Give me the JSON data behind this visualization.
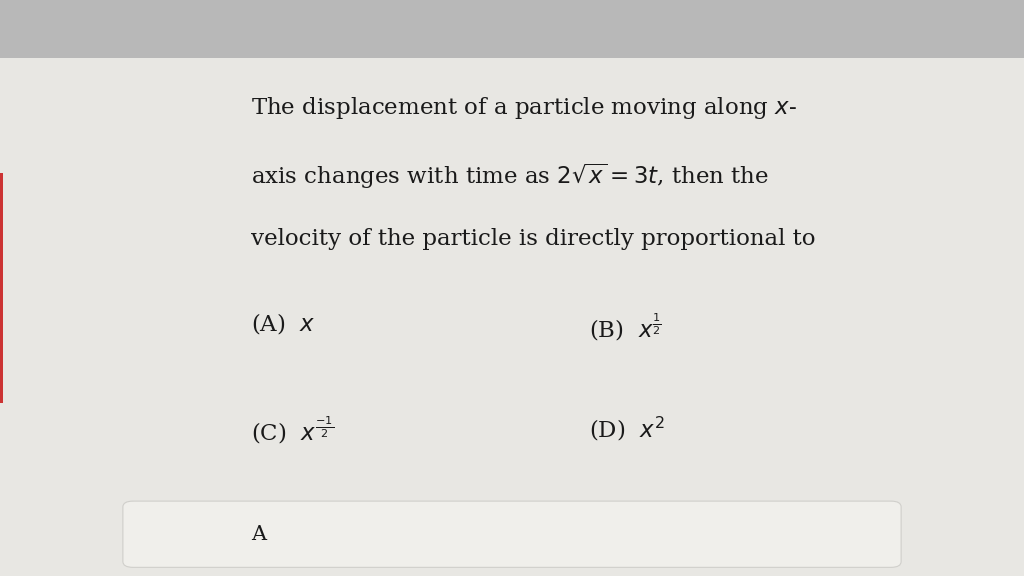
{
  "bg_color": "#dcdcdc",
  "top_strip_color": "#b8b8b8",
  "page_color": "#e8e7e3",
  "text_color": "#1a1a1a",
  "answer_box_color": "#f0efeb",
  "answer_box_edge": "#d0cfcb",
  "left_bar_color": "#cc3333",
  "question_lines": [
    "The displacement of a particle moving along $x$-",
    "axis changes with time as $2\\sqrt{x} = 3t$, then the",
    "velocity of the particle is directly proportional to"
  ],
  "opt_A": "(A)  $x$",
  "opt_B": "(B)  $x^{\\frac{1}{2}}$",
  "opt_C": "(C)  $x^{\\frac{-1}{2}}$",
  "opt_D": "(D)  $x^{2}$",
  "answer_label": "A",
  "figsize": [
    10.24,
    5.76
  ],
  "dpi": 100,
  "q_fontsize": 16.5,
  "opt_fontsize": 16.5,
  "ans_fontsize": 15
}
